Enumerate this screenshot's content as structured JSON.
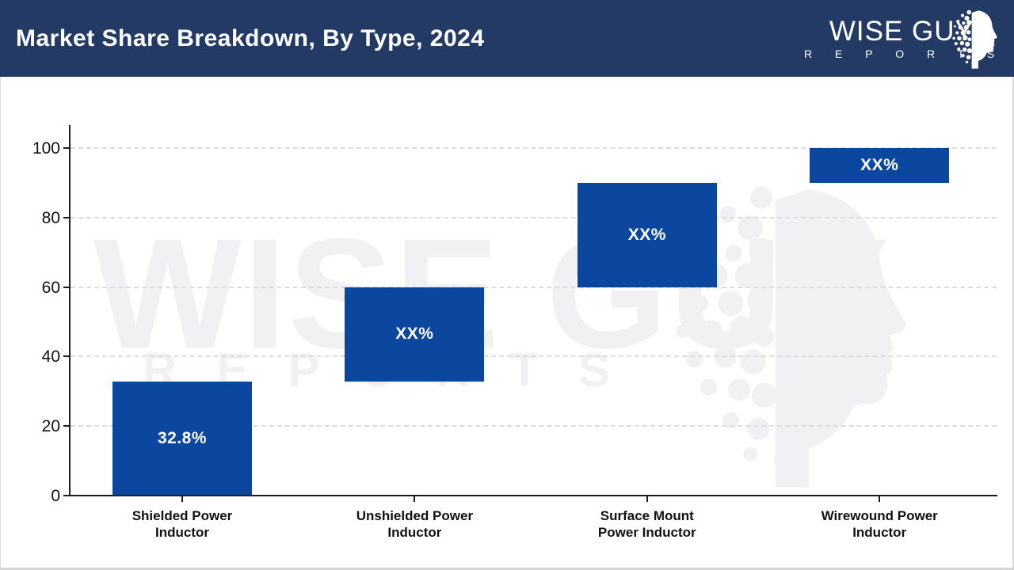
{
  "header": {
    "title": "Market Share Breakdown, By Type, 2024",
    "bg_color": "#233a64",
    "logo": {
      "line1": "WISE GUY",
      "line2": "R E P O R T S"
    }
  },
  "watermark": {
    "line1": "WISE GUY",
    "line2": "REPORTS"
  },
  "chart_data": {
    "type": "bar",
    "subtype": "floating-segment-waterfall",
    "title": "Market Share Breakdown, By Type, 2024",
    "categories": [
      "Shielded Power\nInductor",
      "Unshielded Power\nInductor",
      "Surface Mount\nPower Inductor",
      "Wirewound Power\nInductor"
    ],
    "segments": [
      {
        "category": "Shielded Power Inductor",
        "start": 0,
        "end": 32.8,
        "label": "32.8%"
      },
      {
        "category": "Unshielded Power Inductor",
        "start": 32.8,
        "end": 60,
        "label": "XX%"
      },
      {
        "category": "Surface Mount Power Inductor",
        "start": 60,
        "end": 90,
        "label": "XX%"
      },
      {
        "category": "Wirewound Power Inductor",
        "start": 90,
        "end": 100,
        "label": "XX%"
      }
    ],
    "xlabel": "",
    "ylabel": "",
    "ylim": [
      0,
      100
    ],
    "yticks": [
      0,
      20,
      40,
      60,
      80,
      100
    ],
    "grid": "horizontal-dashed",
    "legend": "none",
    "bar_color": "#0b479e",
    "bar_label_color": "#ffffff",
    "axis_color": "#1c1c1c",
    "grid_color": "#dcdcdc"
  }
}
